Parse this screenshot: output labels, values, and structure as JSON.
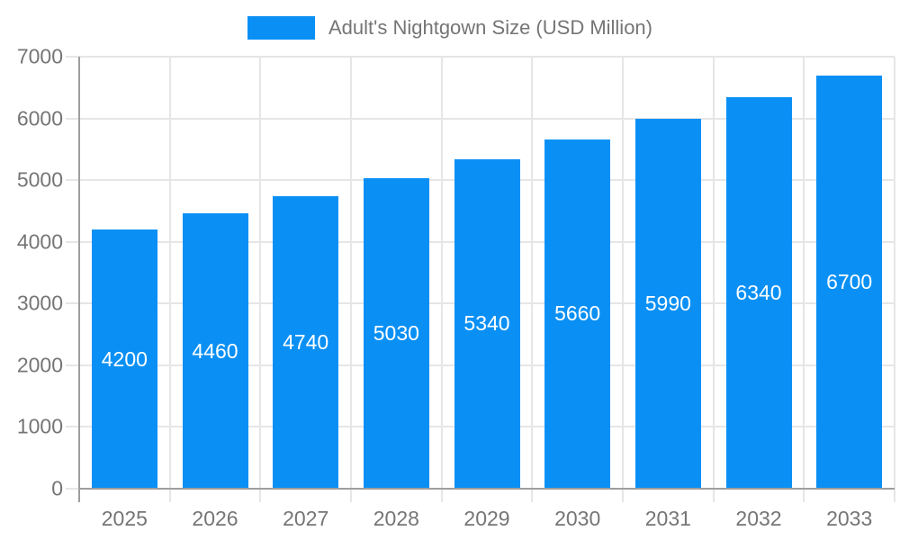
{
  "legend": {
    "label": "Adult's Nightgown Size (USD Million)"
  },
  "colors": {
    "bar": "#0A90F5",
    "grid": "#E6E6E6",
    "axis": "#9E9E9E",
    "text": "#757575",
    "value_label": "#FFFFFF",
    "background": "#FFFFFF"
  },
  "chart_data": {
    "type": "bar",
    "title": "Adult's Nightgown Size (USD Million)",
    "categories": [
      "2025",
      "2026",
      "2027",
      "2028",
      "2029",
      "2030",
      "2031",
      "2032",
      "2033"
    ],
    "values": [
      4200,
      4460,
      4740,
      5030,
      5340,
      5660,
      5990,
      6340,
      6700
    ],
    "series_name": "Adult's Nightgown Size (USD Million)",
    "xlabel": "",
    "ylabel": "",
    "ylim": [
      0,
      7000
    ],
    "yticks": [
      0,
      1000,
      2000,
      3000,
      4000,
      5000,
      6000,
      7000
    ],
    "grid": true,
    "legend_position": "top",
    "value_label_position": "inside-center"
  }
}
